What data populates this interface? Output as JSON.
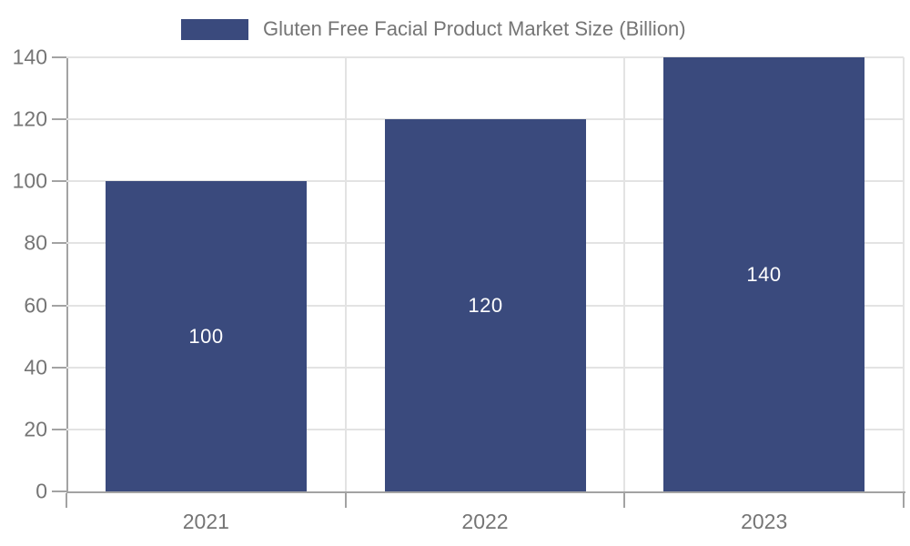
{
  "chart_data": {
    "type": "bar",
    "title": "Gluten Free Facial Product Market Size (Billion)",
    "categories": [
      "2021",
      "2022",
      "2023"
    ],
    "values": [
      100,
      120,
      140
    ],
    "series": [
      {
        "name": "Gluten Free Facial Product Market Size (Billion)",
        "values": [
          100,
          120,
          140
        ]
      }
    ],
    "xlabel": "",
    "ylabel": "",
    "ylim": [
      0,
      140
    ],
    "yticks": [
      0,
      20,
      40,
      60,
      80,
      100,
      120,
      140
    ],
    "grid": true,
    "legend_position": "top",
    "data_labels": [
      "100",
      "120",
      "140"
    ],
    "colors": {
      "bar": "#3A4A7D",
      "bar_label": "#FFFFFF",
      "axis_line": "#A3A3A3",
      "tick_text": "#757575",
      "legend_text": "#757575",
      "gridline": "#E3E3E3",
      "background": "#FFFFFF"
    }
  }
}
